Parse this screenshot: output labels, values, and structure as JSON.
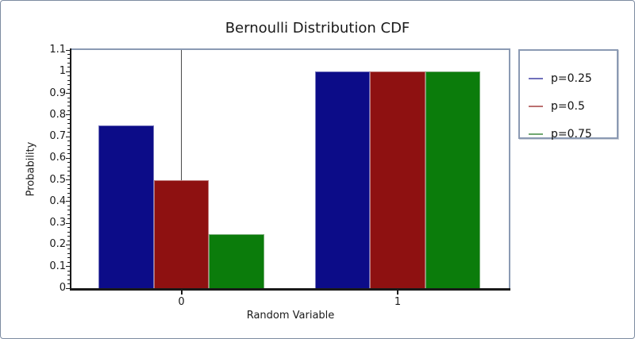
{
  "window": {
    "background": "#ffffff",
    "border_color": "#7d8ba1"
  },
  "chart_data": {
    "type": "bar",
    "title": "Bernoulli Distribution CDF",
    "xlabel": "Random Variable",
    "ylabel": "Probability",
    "categories": [
      "0",
      "1"
    ],
    "x": [
      0,
      1
    ],
    "series": [
      {
        "name": "p=0.25",
        "values": [
          0.75,
          1.0
        ],
        "fill": "#0c0c88",
        "edge": "#7474bb",
        "legend_color": "#7070bb"
      },
      {
        "name": "p=0.5",
        "values": [
          0.5,
          1.0
        ],
        "fill": "#8e1111",
        "edge": "#bb7474",
        "legend_color": "#bb7070"
      },
      {
        "name": "p=0.75",
        "values": [
          0.25,
          1.0
        ],
        "fill": "#0b7c0b",
        "edge": "#74ab74",
        "legend_color": "#70a870"
      }
    ],
    "ylim": [
      0,
      1.1
    ],
    "xlim": [
      -0.5083,
      1.5138
    ],
    "yticks": [
      0,
      0.1,
      0.2,
      0.3,
      0.4,
      0.5,
      0.6,
      0.7,
      0.8,
      0.9,
      1,
      1.1
    ],
    "ytick_labels": [
      "0",
      "0.1",
      "0.2",
      "0.3",
      "0.4",
      "0.5",
      "0.6",
      "0.7",
      "0.8",
      "0.9",
      "1",
      "1.1"
    ],
    "yminor_step": 0.02,
    "xticks": [
      0,
      1
    ],
    "xtick_labels": [
      "0",
      "1"
    ],
    "bar_width": 0.255,
    "grid": false,
    "legend_position": "outside-right",
    "vline_x": 0,
    "frame": {
      "axis_color": "#1a1a1a",
      "box_color": "#8b9ab3",
      "zero_line_color": "#4a4a4a"
    }
  }
}
